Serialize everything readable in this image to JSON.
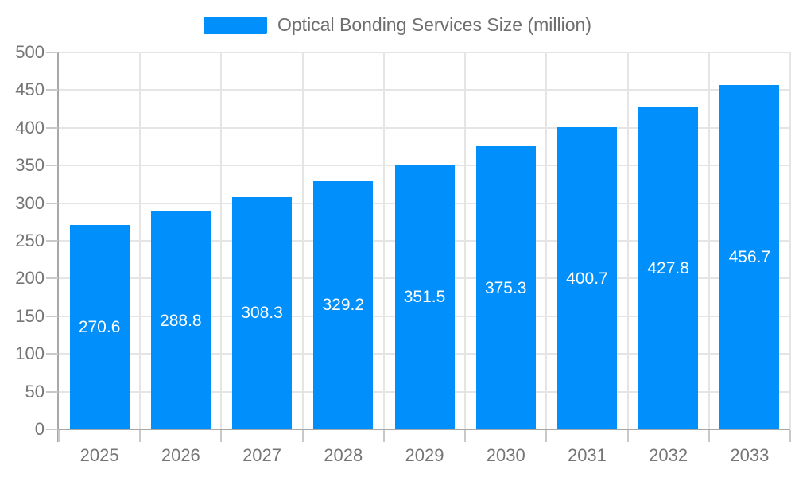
{
  "legend": {
    "label": "Optical Bonding Services Size (million)",
    "swatch_color": "#008FFB"
  },
  "chart_data": {
    "type": "bar",
    "title": "Optical Bonding Services Size (million)",
    "categories": [
      "2025",
      "2026",
      "2027",
      "2028",
      "2029",
      "2030",
      "2031",
      "2032",
      "2033"
    ],
    "series": [
      {
        "name": "Optical Bonding Services Size (million)",
        "values": [
          270.6,
          288.8,
          308.3,
          329.2,
          351.5,
          375.3,
          400.7,
          427.8,
          456.7
        ]
      }
    ],
    "value_labels": [
      "270.6",
      "288.8",
      "308.3",
      "329.2",
      "351.5",
      "375.3",
      "400.7",
      "427.8",
      "456.7"
    ],
    "xlabel": "",
    "ylabel": "",
    "ylim": [
      0,
      500
    ],
    "yticks": [
      0,
      50,
      100,
      150,
      200,
      250,
      300,
      350,
      400,
      450,
      500
    ],
    "grid": true,
    "legend_position": "top",
    "colors": {
      "bar": "#008FFB",
      "grid": "#e5e5e5",
      "tick": "#c9c9c9",
      "axis_line": "#a8a8a8",
      "axis_text": "#757575",
      "legend_text": "#6e6e6e",
      "value_text": "#ffffff"
    }
  }
}
